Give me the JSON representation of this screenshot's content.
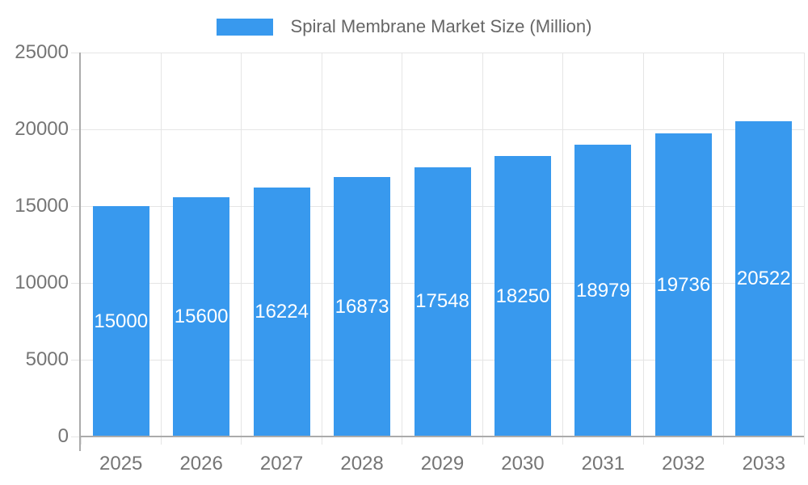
{
  "legend": {
    "label": "Spiral Membrane Market Size (Million)"
  },
  "chart_data": {
    "type": "bar",
    "title": "Spiral Membrane Market Size (Million)",
    "categories": [
      "2025",
      "2026",
      "2027",
      "2028",
      "2029",
      "2030",
      "2031",
      "2032",
      "2033"
    ],
    "series": [
      {
        "name": "Spiral Membrane Market Size (Million)",
        "values": [
          15000,
          15600,
          16224,
          16873,
          17548,
          18250,
          18979,
          19736,
          20522
        ]
      }
    ],
    "data_labels": [
      "15000",
      "15600",
      "16224",
      "16873",
      "17548",
      "18250",
      "18979",
      "19736",
      "20522"
    ],
    "xlabel": "",
    "ylabel": "",
    "ylim": [
      0,
      25000
    ],
    "yticks": [
      0,
      5000,
      10000,
      15000,
      20000,
      25000
    ],
    "ytick_labels": [
      "0",
      "5000",
      "10000",
      "15000",
      "20000",
      "25000"
    ],
    "grid": true,
    "legend_position": "top",
    "colors": {
      "bar": "#3899EE",
      "grid": "#E5E5E5",
      "axis": "#ABABAB",
      "tick_label": "#757575",
      "title": "#666666",
      "data_label": "#FFFFFF"
    }
  }
}
